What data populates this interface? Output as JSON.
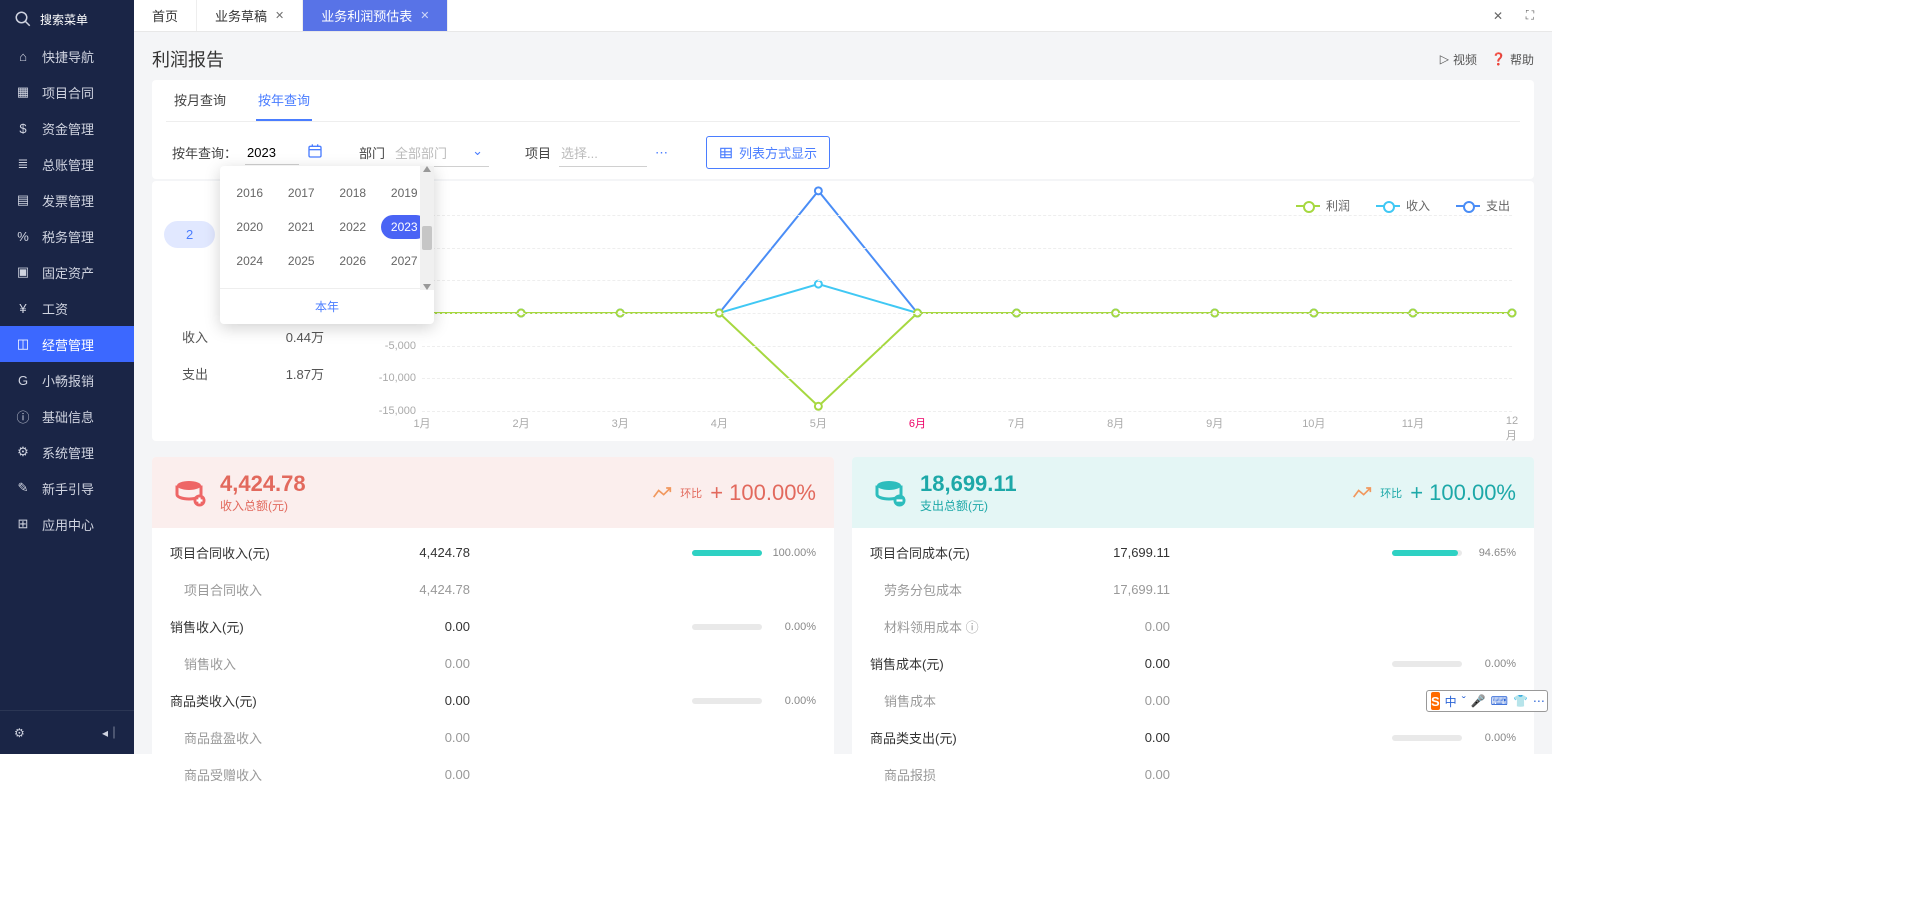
{
  "sidebar": {
    "search_label": "搜索菜单",
    "items": [
      {
        "label": "快捷导航",
        "icon": "home"
      },
      {
        "label": "项目合同",
        "icon": "doc"
      },
      {
        "label": "资金管理",
        "icon": "money"
      },
      {
        "label": "总账管理",
        "icon": "ledger"
      },
      {
        "label": "发票管理",
        "icon": "invoice"
      },
      {
        "label": "税务管理",
        "icon": "tax"
      },
      {
        "label": "固定资产",
        "icon": "asset"
      },
      {
        "label": "工资",
        "icon": "salary"
      },
      {
        "label": "经营管理",
        "icon": "biz",
        "active": true
      },
      {
        "label": "小畅报销",
        "icon": "expense"
      },
      {
        "label": "基础信息",
        "icon": "info"
      },
      {
        "label": "系统管理",
        "icon": "sys"
      },
      {
        "label": "新手引导",
        "icon": "guide"
      },
      {
        "label": "应用中心",
        "icon": "apps"
      }
    ]
  },
  "tabs": [
    {
      "label": "首页",
      "closable": false
    },
    {
      "label": "业务草稿",
      "closable": true
    },
    {
      "label": "业务利润预估表",
      "closable": true,
      "active": true
    }
  ],
  "page": {
    "title": "利润报告",
    "help_video": "视频",
    "help": "帮助"
  },
  "query_tabs": [
    "按月查询",
    "按年查询"
  ],
  "query_tab_active": 1,
  "filters": {
    "year_label": "按年查询：",
    "year_value": "2023",
    "dept_label": "部门",
    "dept_placeholder": "全部部门",
    "proj_label": "项目",
    "proj_placeholder": "选择...",
    "table_btn": "列表方式显示"
  },
  "year_picker": {
    "years": [
      "2016",
      "2017",
      "2018",
      "2019",
      "2020",
      "2021",
      "2022",
      "2023",
      "2024",
      "2025",
      "2026",
      "2027"
    ],
    "selected": "2023",
    "this_year": "本年"
  },
  "chart": {
    "left_pill": "2",
    "left_rows": [
      {
        "label": "收入",
        "value": "0.44万"
      },
      {
        "label": "支出",
        "value": "1.87万"
      }
    ],
    "legend": [
      {
        "label": "利润",
        "color": "#a6d840"
      },
      {
        "label": "收入",
        "color": "#40c8f4"
      },
      {
        "label": "支出",
        "color": "#4a8df6"
      }
    ],
    "y_ticks": [
      "",
      "",
      "",
      "0",
      "-5,000",
      "-10,000",
      "-15,000"
    ],
    "y_min": -15000,
    "y_max": 15000,
    "x_labels": [
      "1月",
      "2月",
      "3月",
      "4月",
      "5月",
      "6月",
      "7月",
      "8月",
      "9月",
      "10月",
      "11月",
      "12月"
    ],
    "x_highlight": "6月",
    "series": {
      "profit": [
        0,
        0,
        0,
        0,
        -14274.33,
        0,
        0,
        0,
        0,
        0,
        0,
        0
      ],
      "income": [
        0,
        0,
        0,
        0,
        4424.78,
        0,
        0,
        0,
        0,
        0,
        0,
        0
      ],
      "expense": [
        0,
        0,
        0,
        0,
        18699.11,
        0,
        0,
        0,
        0,
        0,
        0,
        0
      ]
    }
  },
  "cards": [
    {
      "tone": "red",
      "amount": "4,424.78",
      "sub": "收入总额(元)",
      "hb": "环比",
      "pct": "+ 100.00%",
      "rows": [
        {
          "label": "项目合同收入(元)",
          "value": "4,424.78",
          "pct": "100.00%",
          "bar_pct": 100,
          "bar_color": "#2ed1c3"
        },
        {
          "label": "项目合同收入",
          "value": "4,424.78",
          "sub": true
        },
        {
          "label": "销售收入(元)",
          "value": "0.00",
          "pct": "0.00%",
          "bar_pct": 0,
          "bar_color": "#ccc"
        },
        {
          "label": "销售收入",
          "value": "0.00",
          "sub": true
        },
        {
          "label": "商品类收入(元)",
          "value": "0.00",
          "pct": "0.00%",
          "bar_pct": 0,
          "bar_color": "#ccc"
        },
        {
          "label": "商品盘盈收入",
          "value": "0.00",
          "sub": true
        },
        {
          "label": "商品受赠收入",
          "value": "0.00",
          "sub": true
        }
      ]
    },
    {
      "tone": "teal",
      "amount": "18,699.11",
      "sub": "支出总额(元)",
      "hb": "环比",
      "pct": "+ 100.00%",
      "rows": [
        {
          "label": "项目合同成本(元)",
          "value": "17,699.11",
          "pct": "94.65%",
          "bar_pct": 94.65,
          "bar_color": "#2ed1c3"
        },
        {
          "label": "劳务分包成本",
          "value": "17,699.11",
          "sub": true
        },
        {
          "label": "材料领用成本 ⓘ",
          "value": "0.00",
          "sub": true
        },
        {
          "label": "销售成本(元)",
          "value": "0.00",
          "pct": "0.00%",
          "bar_pct": 0,
          "bar_color": "#ccc"
        },
        {
          "label": "销售成本",
          "value": "0.00",
          "sub": true
        },
        {
          "label": "商品类支出(元)",
          "value": "0.00",
          "pct": "0.00%",
          "bar_pct": 0,
          "bar_color": "#ccc"
        },
        {
          "label": "商品报损",
          "value": "0.00",
          "sub": true
        }
      ]
    }
  ],
  "ime": {
    "label": "中"
  }
}
